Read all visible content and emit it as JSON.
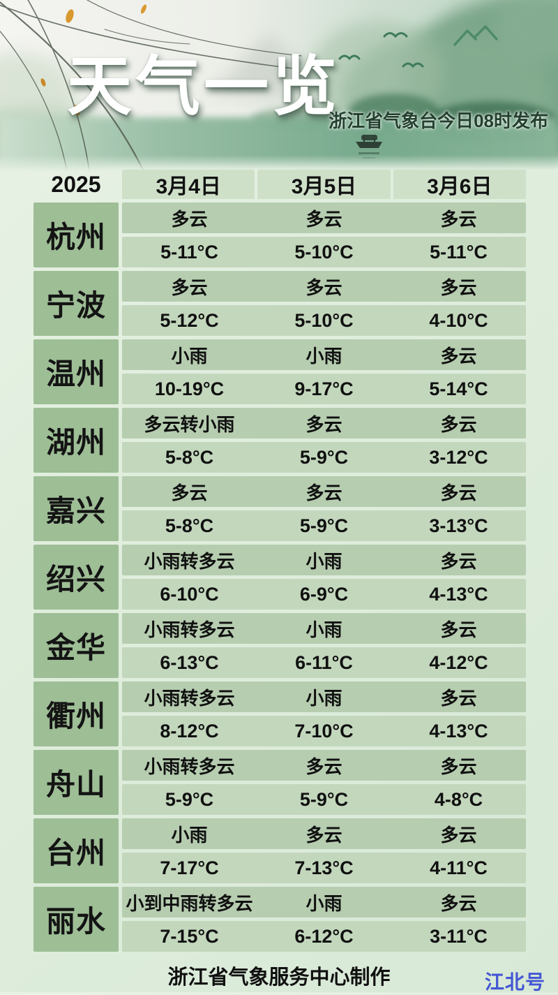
{
  "header": {
    "title": "天气一览",
    "subtitle": "浙江省气象台今日08时发布"
  },
  "table": {
    "year": "2025",
    "dates": [
      "3月4日",
      "3月5日",
      "3月6日"
    ],
    "rows": [
      {
        "city": "杭州",
        "weather": [
          "多云",
          "多云",
          "多云"
        ],
        "temps": [
          "5-11°C",
          "5-10°C",
          "5-11°C"
        ]
      },
      {
        "city": "宁波",
        "weather": [
          "多云",
          "多云",
          "多云"
        ],
        "temps": [
          "5-12°C",
          "5-10°C",
          "4-10°C"
        ]
      },
      {
        "city": "温州",
        "weather": [
          "小雨",
          "小雨",
          "多云"
        ],
        "temps": [
          "10-19°C",
          "9-17°C",
          "5-14°C"
        ]
      },
      {
        "city": "湖州",
        "weather": [
          "多云转小雨",
          "多云",
          "多云"
        ],
        "temps": [
          "5-8°C",
          "5-9°C",
          "3-12°C"
        ]
      },
      {
        "city": "嘉兴",
        "weather": [
          "多云",
          "多云",
          "多云"
        ],
        "temps": [
          "5-8°C",
          "5-9°C",
          "3-13°C"
        ]
      },
      {
        "city": "绍兴",
        "weather": [
          "小雨转多云",
          "小雨",
          "多云"
        ],
        "temps": [
          "6-10°C",
          "6-9°C",
          "4-13°C"
        ]
      },
      {
        "city": "金华",
        "weather": [
          "小雨转多云",
          "小雨",
          "多云"
        ],
        "temps": [
          "6-13°C",
          "6-11°C",
          "4-12°C"
        ]
      },
      {
        "city": "衢州",
        "weather": [
          "小雨转多云",
          "小雨",
          "多云"
        ],
        "temps": [
          "8-12°C",
          "7-10°C",
          "4-13°C"
        ]
      },
      {
        "city": "舟山",
        "weather": [
          "小雨转多云",
          "多云",
          "多云"
        ],
        "temps": [
          "5-9°C",
          "5-9°C",
          "4-8°C"
        ]
      },
      {
        "city": "台州",
        "weather": [
          "小雨",
          "多云",
          "多云"
        ],
        "temps": [
          "7-17°C",
          "7-13°C",
          "4-11°C"
        ]
      },
      {
        "city": "丽水",
        "weather": [
          "小到中雨转多云",
          "小雨",
          "多云"
        ],
        "temps": [
          "7-15°C",
          "6-12°C",
          "3-11°C"
        ]
      }
    ]
  },
  "footer": {
    "credit": "浙江省气象服务中心制作",
    "watermark": "江北号"
  },
  "colors": {
    "city_cell": "#9ebe96",
    "weather_band": "#b6cdb0",
    "temp_band": "#c3d7bd",
    "date_header": "#cfe0c9",
    "page_background": "#e0eedd",
    "title_text": "#ffffff",
    "subtitle_text": "#23402e",
    "watermark_blue": "#4456d4"
  },
  "chart_data": {
    "type": "table",
    "title": "天气一览",
    "subtitle": "浙江省气象台今日08时发布",
    "columns": [
      "2025",
      "3月4日",
      "3月5日",
      "3月6日"
    ],
    "rows": [
      [
        "杭州",
        "多云 5-11°C",
        "多云 5-10°C",
        "多云 5-11°C"
      ],
      [
        "宁波",
        "多云 5-12°C",
        "多云 5-10°C",
        "多云 4-10°C"
      ],
      [
        "温州",
        "小雨 10-19°C",
        "小雨 9-17°C",
        "多云 5-14°C"
      ],
      [
        "湖州",
        "多云转小雨 5-8°C",
        "多云 5-9°C",
        "多云 3-12°C"
      ],
      [
        "嘉兴",
        "多云 5-8°C",
        "多云 5-9°C",
        "多云 3-13°C"
      ],
      [
        "绍兴",
        "小雨转多云 6-10°C",
        "小雨 6-9°C",
        "多云 4-13°C"
      ],
      [
        "金华",
        "小雨转多云 6-13°C",
        "小雨 6-11°C",
        "多云 4-12°C"
      ],
      [
        "衢州",
        "小雨转多云 8-12°C",
        "小雨 7-10°C",
        "多云 4-13°C"
      ],
      [
        "舟山",
        "小雨转多云 5-9°C",
        "多云 5-9°C",
        "多云 4-8°C"
      ],
      [
        "台州",
        "小雨 7-17°C",
        "多云 7-13°C",
        "多云 4-11°C"
      ],
      [
        "丽水",
        "小到中雨转多云 7-15°C",
        "小雨 6-12°C",
        "多云 3-11°C"
      ]
    ],
    "footer": "浙江省气象服务中心制作"
  }
}
